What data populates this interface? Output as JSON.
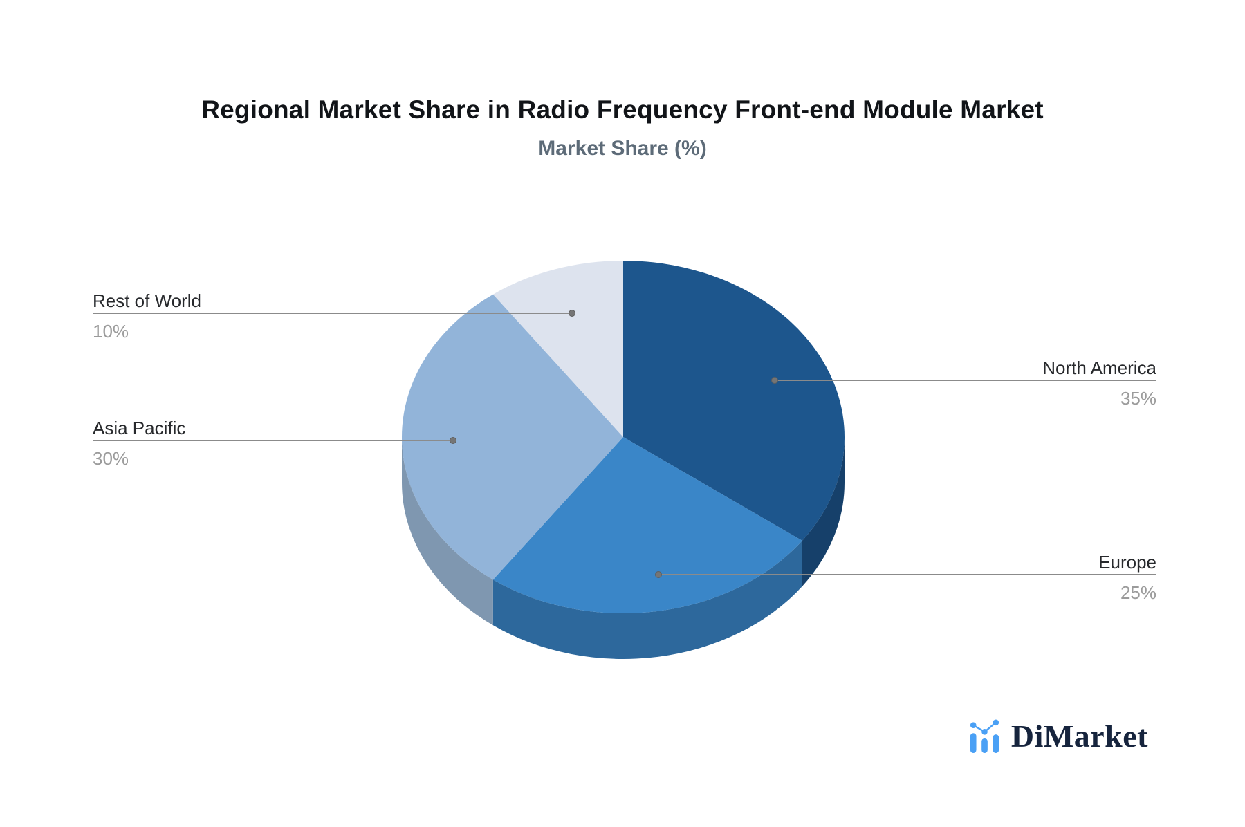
{
  "page": {
    "background_color": "#ffffff",
    "title": "Regional Market Share in Radio Frequency Front-end Module Market",
    "subtitle": "Market Share (%)"
  },
  "chart_data": {
    "type": "pie",
    "style": "3d-pie",
    "title": "Regional Market Share in Radio Frequency Front-end Module Market",
    "value_label": "Market Share (%)",
    "unit": "%",
    "start_angle_deg": 0,
    "direction": "clockwise",
    "legend_position": "callout-labels",
    "segments": [
      {
        "label": "North America",
        "value": 35,
        "pct_text": "35%",
        "color": "#1d568d",
        "side_color": "#16406a"
      },
      {
        "label": "Europe",
        "value": 25,
        "pct_text": "25%",
        "color": "#3a86c8",
        "side_color": "#2d689c"
      },
      {
        "label": "Asia Pacific",
        "value": 30,
        "pct_text": "30%",
        "color": "#92b4d9",
        "side_color": "#7f97b0"
      },
      {
        "label": "Rest of World",
        "value": 10,
        "pct_text": "10%",
        "color": "#dde3ee",
        "side_color": "#b9c4d4"
      }
    ],
    "callout_line_color": "#8b8b8b",
    "label_text_color": "#27292c",
    "pct_text_color": "#9b9b9b"
  },
  "logo": {
    "text": "DiMarket",
    "icon": "bar-chart-trend-icon",
    "icon_color": "#4aa0f5",
    "text_color": "#16243d"
  }
}
